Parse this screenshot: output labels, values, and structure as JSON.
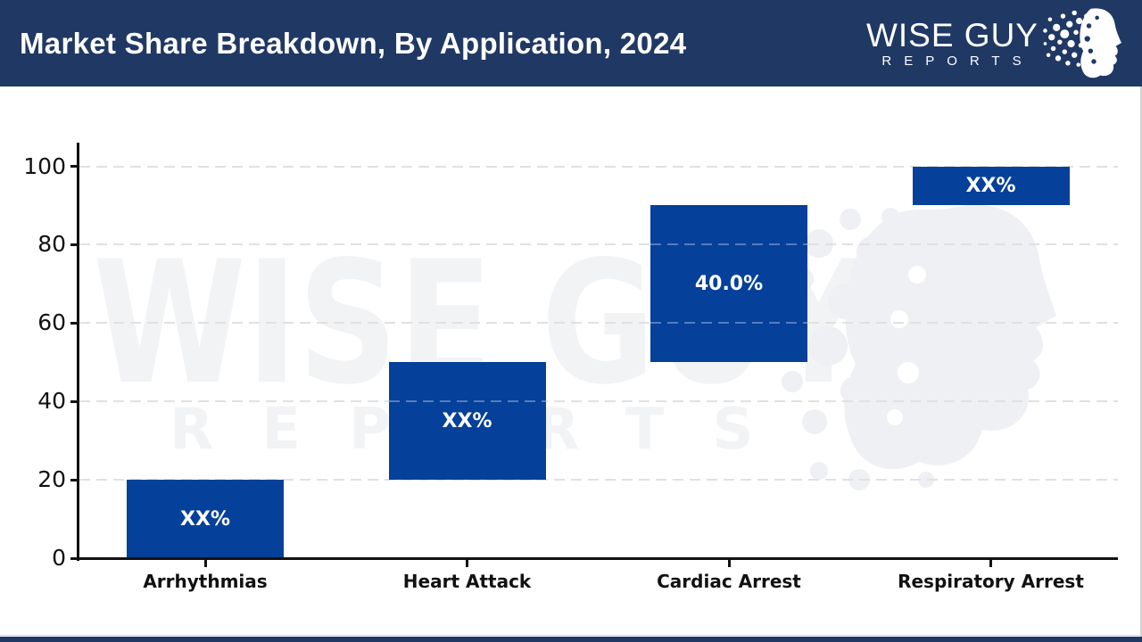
{
  "header": {
    "title": "Market Share Breakdown, By Application, 2024",
    "logo": {
      "wordmark": "WISE GUY",
      "subtitle": "REPORTS"
    }
  },
  "watermark": {
    "wordmark": "WISE GUY",
    "subtitle": "REPORTS"
  },
  "chart_data": {
    "type": "bar",
    "variant": "floating-segment-bars",
    "title": "Market Share Breakdown, By Application, 2024",
    "categories": [
      "Arrhythmias",
      "Heart Attack",
      "Cardiac Arrest",
      "Respiratory Arrest"
    ],
    "segments": [
      {
        "category": "Arrhythmias",
        "start": 0,
        "end": 20,
        "label": "XX%"
      },
      {
        "category": "Heart Attack",
        "start": 20,
        "end": 50,
        "label": "XX%"
      },
      {
        "category": "Cardiac Arrest",
        "start": 50,
        "end": 90,
        "label": "40.0%"
      },
      {
        "category": "Respiratory Arrest",
        "start": 90,
        "end": 100,
        "label": "XX%"
      }
    ],
    "yticks": [
      0,
      20,
      40,
      60,
      80,
      100
    ],
    "ylim": [
      0,
      105
    ],
    "xlabel": "",
    "ylabel": "",
    "grid": {
      "horizontal": true,
      "style": "dashed",
      "color": "#e1e1e1"
    },
    "legend": null
  },
  "colors": {
    "header_bg": "#203864",
    "footer_bg": "#203864",
    "bar": "#05409a",
    "bar_label": "#ffffff",
    "axis": "#111111",
    "tick_label": "#111111",
    "watermark": "#f2f3f5",
    "watermark_head": "#eff0f3"
  }
}
